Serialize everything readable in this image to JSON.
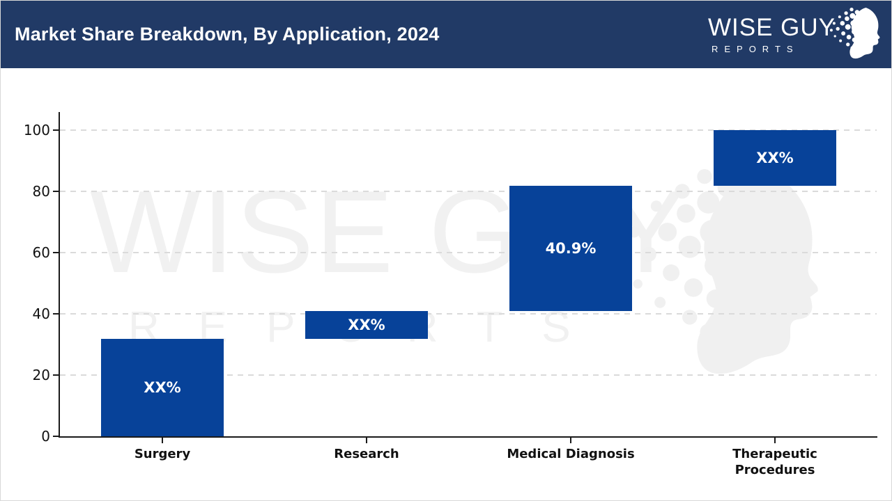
{
  "header": {
    "title": "Market Share Breakdown, By Application, 2024",
    "bg_color": "#213a66",
    "brand": {
      "line1": "WISE GUY",
      "line2": "REPORTS"
    }
  },
  "watermark": {
    "line1": "WISE GUY",
    "line2": "REPORTS"
  },
  "chart_data": {
    "type": "bar",
    "subtype": "waterfall-stacked",
    "title": "Market Share Breakdown, By Application, 2024",
    "categories": [
      "Surgery",
      "Research",
      "Medical Diagnosis",
      "Therapeutic Procedures"
    ],
    "segments": [
      {
        "category": "Surgery",
        "start": 0,
        "end": 31.8,
        "label": "XX%"
      },
      {
        "category": "Research",
        "start": 31.8,
        "end": 40.9,
        "label": "XX%"
      },
      {
        "category": "Medical Diagnosis",
        "start": 40.9,
        "end": 81.8,
        "label": "40.9%"
      },
      {
        "category": "Therapeutic Procedures",
        "start": 81.8,
        "end": 100,
        "label": "XX%"
      }
    ],
    "yticks": [
      0,
      20,
      40,
      60,
      80,
      100
    ],
    "ylim": [
      0,
      105
    ],
    "xlabel": "",
    "ylabel": "",
    "grid": "horizontal-dashed",
    "legend": "none",
    "bar_color": "#074299",
    "bar_label_color": "#ffffff",
    "axis_color": "#1a1a1a",
    "gridline_color": "#dadada"
  }
}
